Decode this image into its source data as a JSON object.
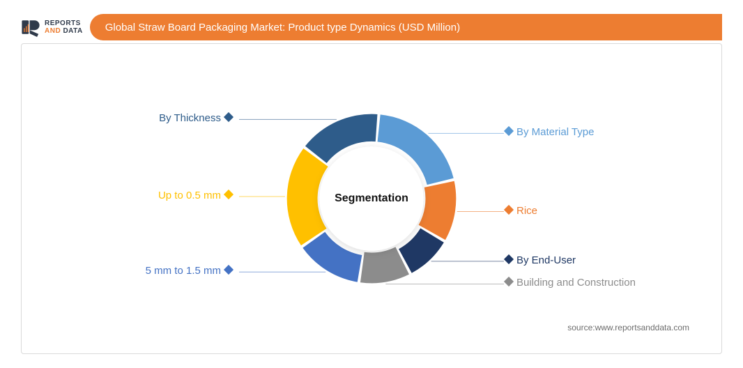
{
  "logo": {
    "line1": "REPORTS",
    "line2_a": "AND",
    "line2_b": " DATA"
  },
  "title": "Global Straw Board Packaging Market: Product type Dynamics (USD Million)",
  "title_bg": "#ed7d31",
  "center_label": "Segmentation",
  "source": "source:www.reportsanddata.com",
  "donut": {
    "outer_r": 130,
    "inner_r": 88,
    "gap_deg": 2,
    "center_circle_fill": "#ffffff",
    "center_circle_shadow": "#00000022",
    "segments": [
      {
        "label": "By Material Type",
        "value": 20,
        "color": "#5b9bd5",
        "side": "right"
      },
      {
        "label": "Rice",
        "value": 12,
        "color": "#ed7d31",
        "side": "right"
      },
      {
        "label": "By End-User",
        "value": 9,
        "color": "#1f3864",
        "side": "right"
      },
      {
        "label": "Building and Construction",
        "value": 10,
        "color": "#8c8c8c",
        "side": "right"
      },
      {
        "label": "5 mm to 1.5 mm",
        "value": 13,
        "color": "#4472c4",
        "side": "left"
      },
      {
        "label": "Up to 0.5 mm",
        "value": 20,
        "color": "#ffc000",
        "side": "left"
      },
      {
        "label": "By Thickness",
        "value": 16,
        "color": "#2e5c8a",
        "side": "left"
      }
    ]
  },
  "frame_border": "#d9d9d9",
  "leader_opacity": 0.6
}
